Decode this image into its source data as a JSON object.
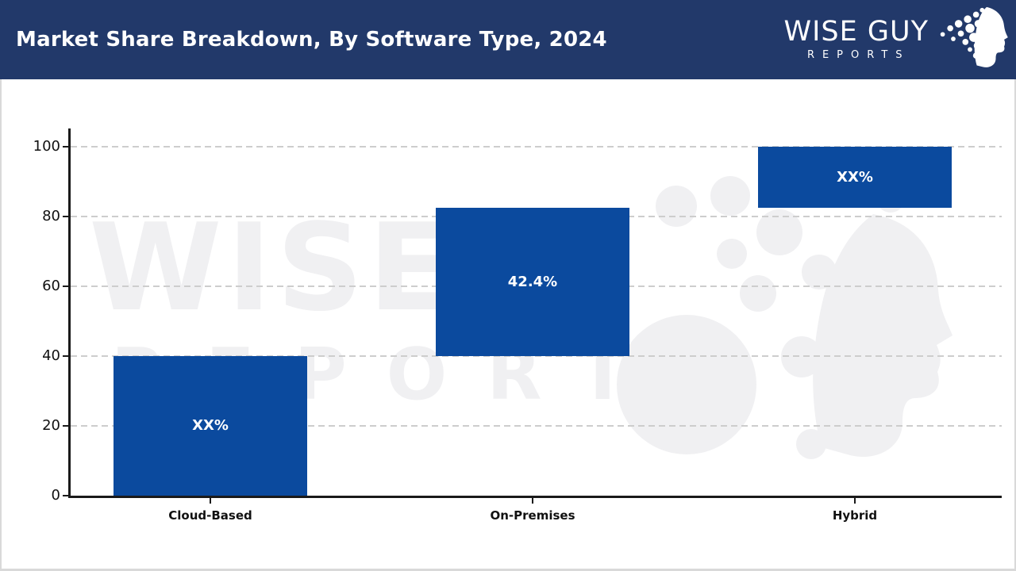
{
  "header": {
    "title": "Market Share Breakdown, By Software Type, 2024",
    "bg_color": "#22396a",
    "logo": {
      "line1": "WISE GUY",
      "line2": "REPORTS"
    }
  },
  "watermark": {
    "line1": "WISE",
    "line2": "REPORTS"
  },
  "chart_data": {
    "type": "bar",
    "subtype": "floating-waterfall",
    "title": "Market Share Breakdown, By Software Type, 2024",
    "categories": [
      "Cloud-Based",
      "On-Premises",
      "Hybrid"
    ],
    "segments": [
      {
        "category": "Cloud-Based",
        "start": 0,
        "end": 40,
        "label": "XX%"
      },
      {
        "category": "On-Premises",
        "start": 40,
        "end": 82.4,
        "label": "42.4%"
      },
      {
        "category": "Hybrid",
        "start": 82.4,
        "end": 100,
        "label": "XX%"
      }
    ],
    "ylim": [
      0,
      100
    ],
    "yticks": [
      0,
      20,
      40,
      60,
      80,
      100
    ],
    "xlabel": "",
    "ylabel": "",
    "grid": "horizontal-dashed",
    "legend": "none",
    "bar_color": "#0b4a9e",
    "bar_label_color": "#ffffff",
    "grid_color": "#cdcdcd",
    "axis_color": "#1a1a1a"
  }
}
